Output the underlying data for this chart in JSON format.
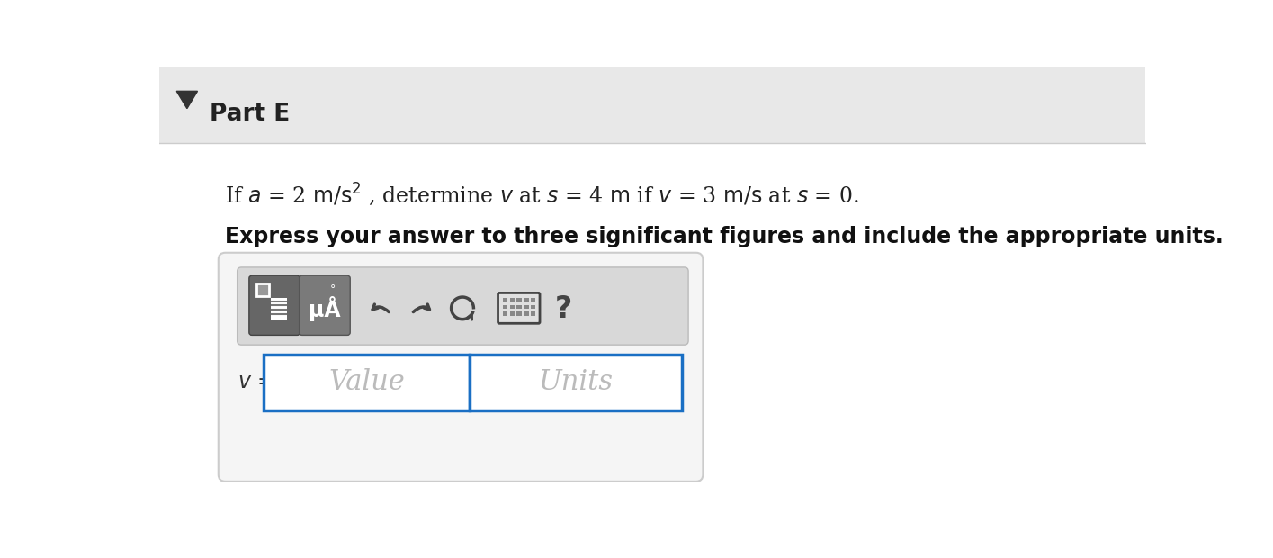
{
  "bg_color": "#f0f0f0",
  "white_bg": "#ffffff",
  "part_label": "Part E",
  "triangle_color": "#333333",
  "bold_line": "Express your answer to three significant figures and include the appropriate units.",
  "header_bg": "#e8e8e8",
  "input_box_color": "#1a6fc4",
  "value_placeholder": "Value",
  "units_placeholder": "Units",
  "container_bg": "#f5f5f5",
  "container_border": "#cccccc",
  "toolbar_bg": "#d8d8d8",
  "btn1_color": "#666666",
  "btn2_color": "#777777",
  "icon_color": "#444444"
}
